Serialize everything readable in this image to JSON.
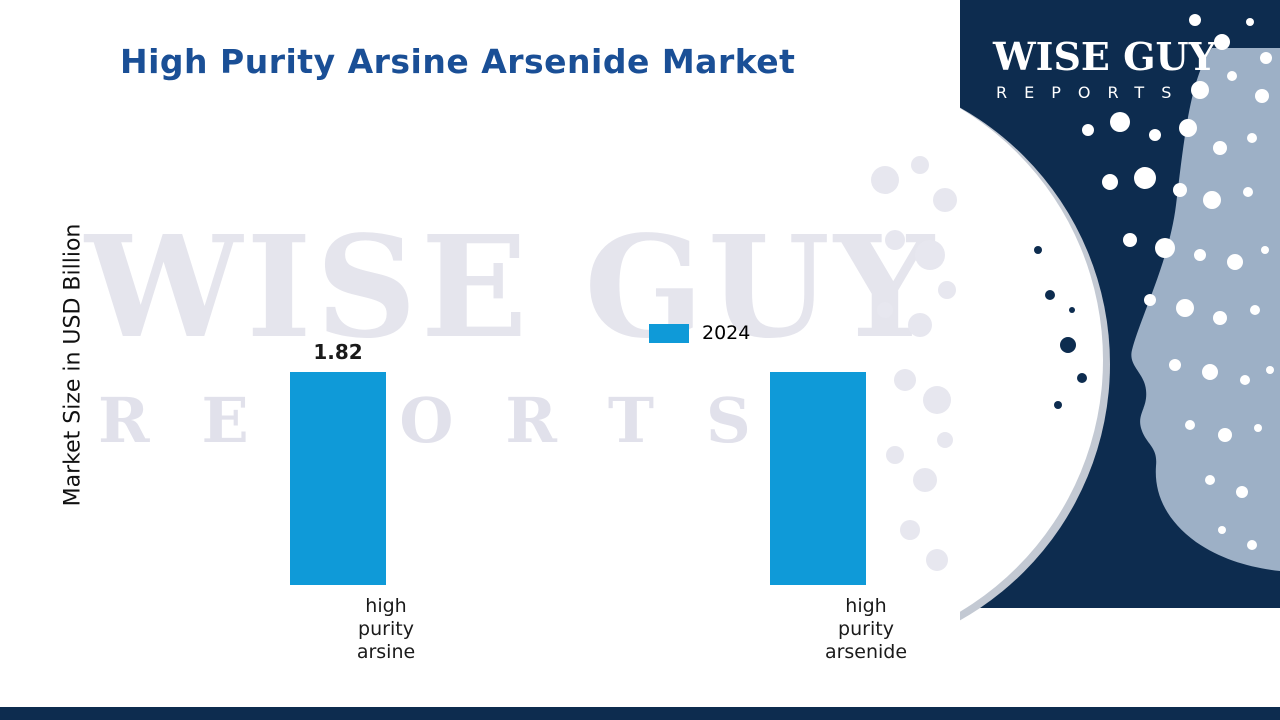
{
  "chart_data": {
    "type": "bar",
    "title": "High Purity Arsine Arsenide Market",
    "ylabel": "Market Size in USD Billion",
    "xlabel": "",
    "categories": [
      "high purity arsine",
      "high purity arsenide"
    ],
    "categories_wrapped": [
      "high\npurity\narsine",
      "high\npurity\narsenide"
    ],
    "values": [
      1.82,
      1.82
    ],
    "value_labels": [
      "1.82",
      ""
    ],
    "bar_color": "#0f9ad8",
    "legend": [
      {
        "label": "2024",
        "color": "#0f9ad8"
      }
    ],
    "legend_position": "top-center",
    "grid": false,
    "ylim": [
      0,
      2.2
    ]
  },
  "watermark": {
    "line1": "WISE GUY",
    "line2": "REPORTS"
  },
  "brand": {
    "name": "WISE GUY",
    "subtitle": "REPORTS",
    "panel_color": "#0d2c4f"
  },
  "colors": {
    "title": "#1a4f96",
    "bar": "#0f9ad8",
    "navy": "#0d2c4f",
    "watermark": "#e5e5ed",
    "text": "#1a1a1a",
    "background": "#ffffff"
  }
}
